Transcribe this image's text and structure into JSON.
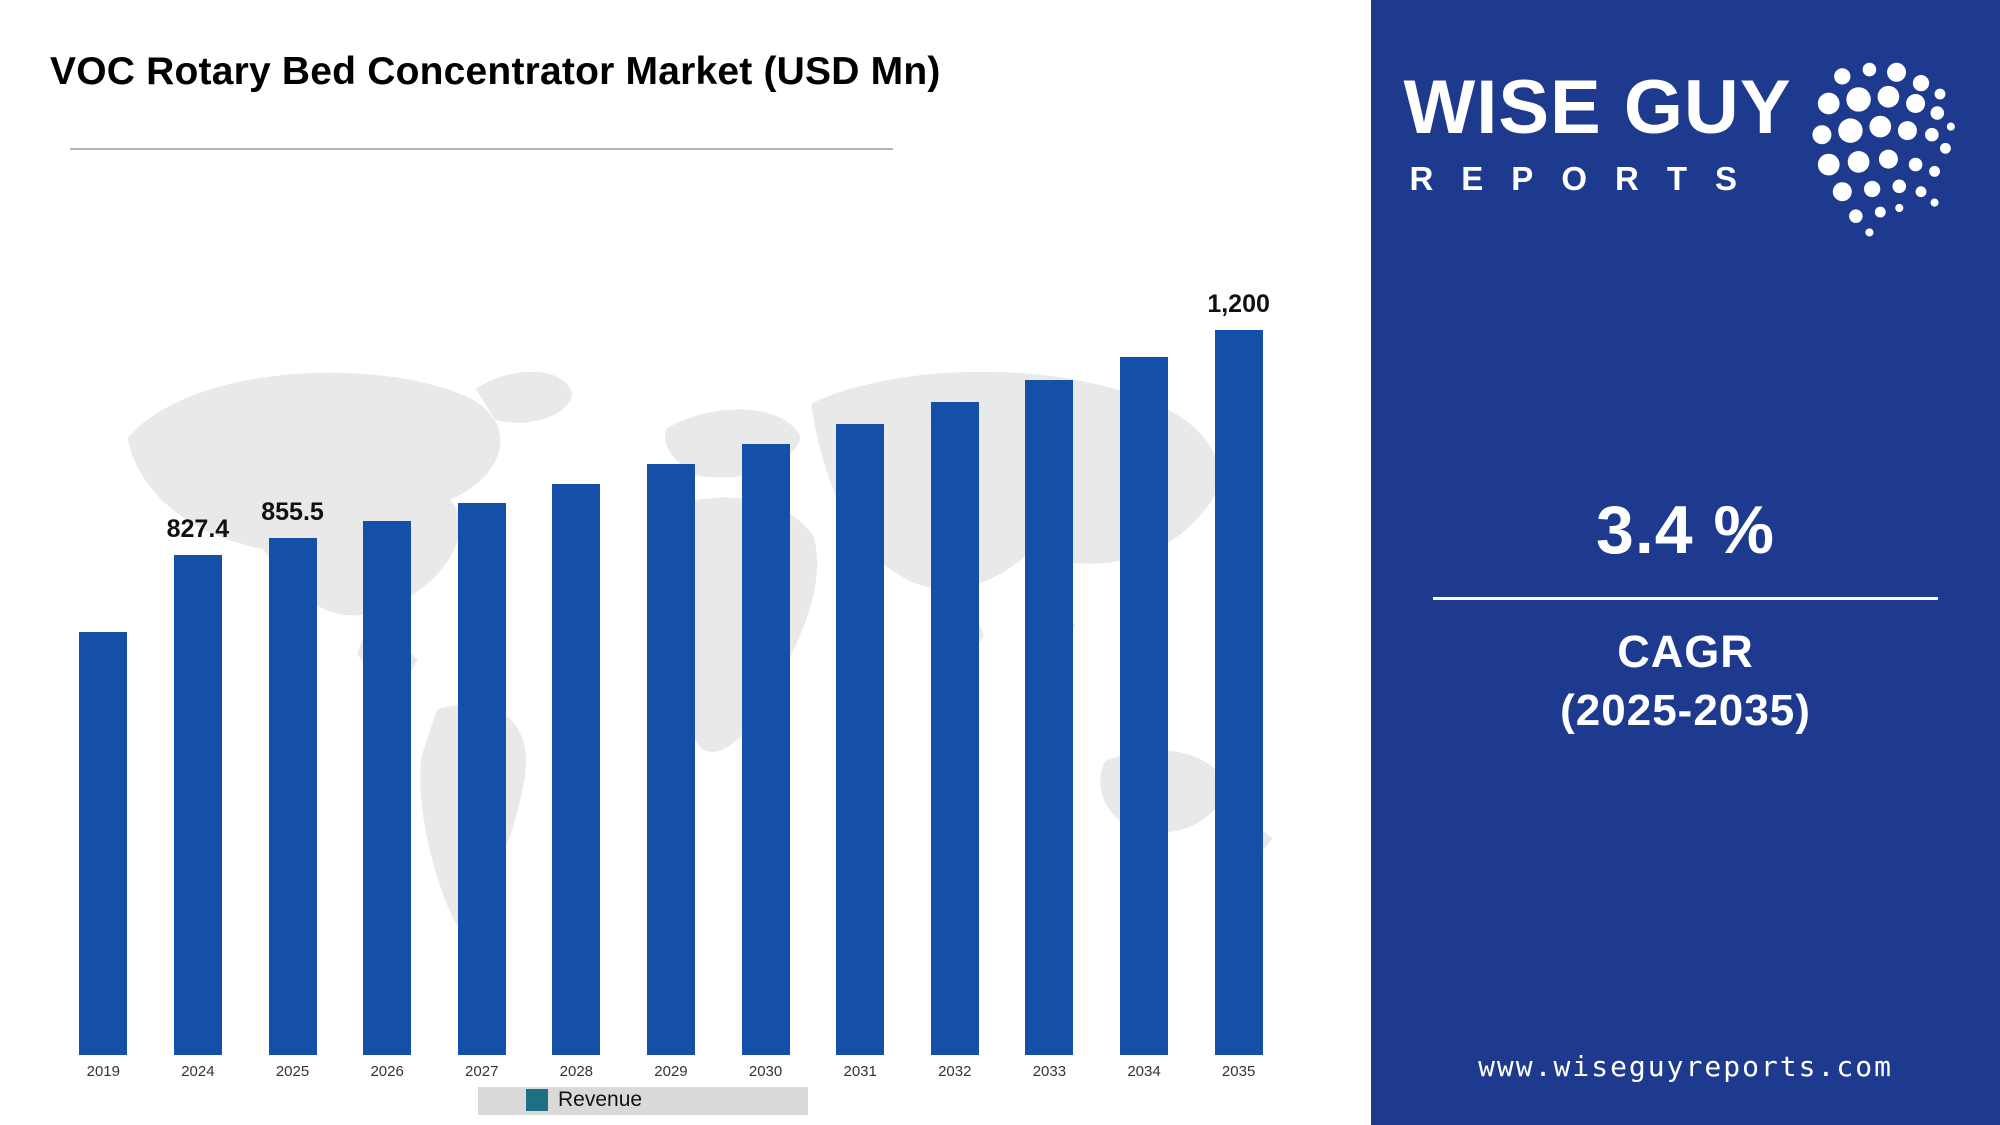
{
  "title": "VOC Rotary Bed Concentrator Market (USD Mn)",
  "chart_data": {
    "type": "bar",
    "title": "VOC Rotary Bed Concentrator Market (USD Mn)",
    "categories": [
      "2019",
      "2024",
      "2025",
      "2026",
      "2027",
      "2028",
      "2029",
      "2030",
      "2031",
      "2032",
      "2033",
      "2034",
      "2035"
    ],
    "values": [
      700,
      827.4,
      855.5,
      884.6,
      914.7,
      945.8,
      977.9,
      1011.2,
      1045.5,
      1081.1,
      1117.8,
      1155.8,
      1200
    ],
    "data_labels": {
      "2024": "827.4",
      "2025": "855.5",
      "2035": "1,200"
    },
    "ylim": [
      0,
      1250
    ],
    "grid": false,
    "bar_color": "#1450a8",
    "legend_position": "bottom-center",
    "legend": [
      {
        "label": "Revenue",
        "color": "#1d6f83"
      }
    ]
  },
  "brand_panel": {
    "bg_color": "#1e3a8f",
    "logo_word1": "WISE GUY",
    "logo_word2": "REPORTS",
    "cagr_value": "3.4 %",
    "cagr_label": "CAGR",
    "cagr_period": "(2025-2035)",
    "website": "www.wiseguyreports.com"
  }
}
